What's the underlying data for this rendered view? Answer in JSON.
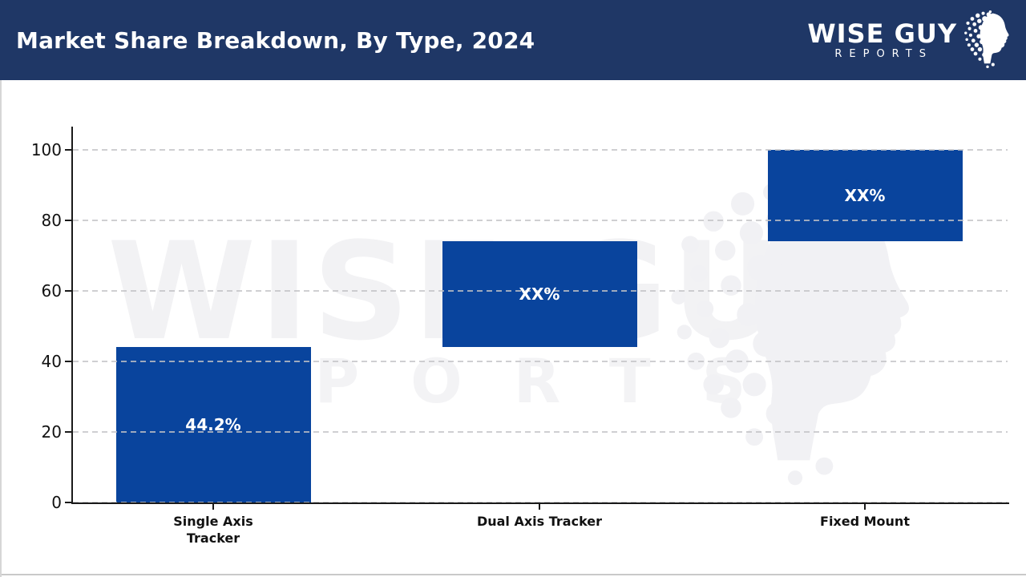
{
  "header": {
    "title": "Market Share Breakdown, By Type, 2024",
    "logo": {
      "line1": "WISE GUY",
      "line2": "REPORTS"
    }
  },
  "watermark": {
    "line1": "WISE GUY",
    "line2": "REPORTS"
  },
  "colors": {
    "header_bg": "#1f3766",
    "bar": "#09449d",
    "axis": "#1a1a1a",
    "gridline": "#d9d9d9",
    "bar_label_text": "#ffffff",
    "title_text": "#ffffff",
    "watermark": "#f2f2f4",
    "bottom_rule": "#c9c9c9"
  },
  "chart_data": {
    "type": "bar",
    "subtype": "stacked-waterfall",
    "title": "Market Share Breakdown, By Type, 2024",
    "categories": [
      "Single Axis Tracker",
      "Dual Axis Tracker",
      "Fixed Mount"
    ],
    "tick_labels": [
      "Single Axis\nTracker",
      "Dual Axis Tracker",
      "Fixed Mount"
    ],
    "segments": [
      {
        "category": "Single Axis Tracker",
        "start": 0,
        "end": 44.2,
        "value_label": "44.2%"
      },
      {
        "category": "Dual Axis Tracker",
        "start": 44.2,
        "end": 74,
        "value_label": "XX%"
      },
      {
        "category": "Fixed Mount",
        "start": 74,
        "end": 100,
        "value_label": "XX%"
      }
    ],
    "xlabel": "",
    "ylabel": "",
    "y_ticks": [
      0,
      20,
      40,
      60,
      80,
      100
    ],
    "ylim": [
      0,
      106
    ],
    "grid": "dashed-horizontal",
    "legend": "none"
  }
}
